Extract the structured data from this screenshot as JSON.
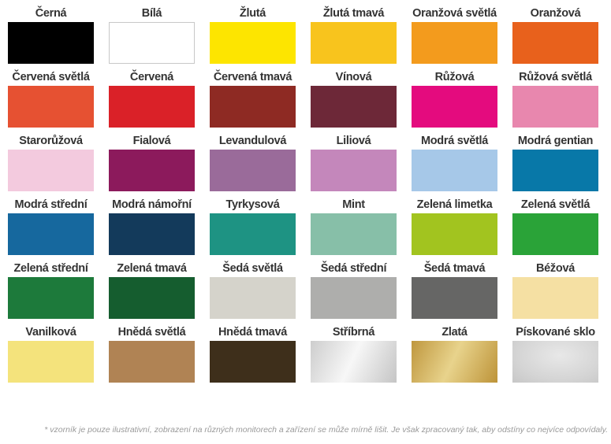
{
  "footnote": "* vzorník je pouze ilustrativní, zobrazení na různých monitorech a zařízení se může mírně lišit. Je však zpracovaný tak, aby odstíny co nejvíce odpovídaly.",
  "palette": {
    "columns": 6,
    "swatches": [
      {
        "label": "Černá",
        "color": "#000000"
      },
      {
        "label": "Bílá",
        "color": "#ffffff",
        "border": "#c8c8c8"
      },
      {
        "label": "Žlutá",
        "color": "#fde500"
      },
      {
        "label": "Žlutá tmavá",
        "color": "#f8c41d"
      },
      {
        "label": "Oranžová světlá",
        "color": "#f39b1d"
      },
      {
        "label": "Oranžová",
        "color": "#e8611c"
      },
      {
        "label": "Červená světlá",
        "color": "#e65132"
      },
      {
        "label": "Červená",
        "color": "#da2128"
      },
      {
        "label": "Červená tmavá",
        "color": "#8e2a23"
      },
      {
        "label": "Vínová",
        "color": "#6d2838"
      },
      {
        "label": "Růžová",
        "color": "#e40b7e"
      },
      {
        "label": "Růžová světlá",
        "color": "#e887ae"
      },
      {
        "label": "Starorůžová",
        "color": "#f3cade"
      },
      {
        "label": "Fialová",
        "color": "#8c1a5c"
      },
      {
        "label": "Levandulová",
        "color": "#9a6b9a"
      },
      {
        "label": "Liliová",
        "color": "#c487bb"
      },
      {
        "label": "Modrá světlá",
        "color": "#a6c8e8"
      },
      {
        "label": "Modrá gentian",
        "color": "#0878a8"
      },
      {
        "label": "Modrá střední",
        "color": "#16689e"
      },
      {
        "label": "Modrá námořní",
        "color": "#133a5b"
      },
      {
        "label": "Tyrkysová",
        "color": "#1e9383"
      },
      {
        "label": "Mint",
        "color": "#87bfa8"
      },
      {
        "label": "Zelená limetka",
        "color": "#a2c41f"
      },
      {
        "label": "Zelená světlá",
        "color": "#2aa338"
      },
      {
        "label": "Zelená střední",
        "color": "#1d7a3b"
      },
      {
        "label": "Zelená tmavá",
        "color": "#155d2f"
      },
      {
        "label": "Šedá světlá",
        "color": "#d5d3cb"
      },
      {
        "label": "Šedá střední",
        "color": "#aeaeac"
      },
      {
        "label": "Šedá tmavá",
        "color": "#666665"
      },
      {
        "label": "Béžová",
        "color": "#f5e0a3"
      },
      {
        "label": "Vanilková",
        "color": "#f4e37c"
      },
      {
        "label": "Hnědá světlá",
        "color": "#b08354"
      },
      {
        "label": "Hnědá tmavá",
        "color": "#3e2f1b"
      },
      {
        "label": "Stříbrná",
        "color": "#d9d9d9",
        "gradient": "linear-gradient(115deg,#cdcdcd 0%,#f7f7f7 48%,#c5c5c5 100%)"
      },
      {
        "label": "Zlatá",
        "color": "#d2a74f",
        "gradient": "linear-gradient(115deg,#bf973e 0%,#e8d38c 48%,#bd9338 100%)"
      },
      {
        "label": "Pískované sklo",
        "color": "#d5d5d5",
        "gradient": "radial-gradient(ellipse at 55% 35%,#e8e8e8 0%,#d4d4d4 65%,#c7c7c7 100%)"
      }
    ]
  },
  "chart_data": {
    "type": "table",
    "columns": [
      "name",
      "color_hex"
    ],
    "rows": [
      [
        "Černá",
        "#000000"
      ],
      [
        "Bílá",
        "#ffffff"
      ],
      [
        "Žlutá",
        "#fde500"
      ],
      [
        "Žlutá tmavá",
        "#f8c41d"
      ],
      [
        "Oranžová světlá",
        "#f39b1d"
      ],
      [
        "Oranžová",
        "#e8611c"
      ],
      [
        "Červená světlá",
        "#e65132"
      ],
      [
        "Červená",
        "#da2128"
      ],
      [
        "Červená tmavá",
        "#8e2a23"
      ],
      [
        "Vínová",
        "#6d2838"
      ],
      [
        "Růžová",
        "#e40b7e"
      ],
      [
        "Růžová světlá",
        "#e887ae"
      ],
      [
        "Starorůžová",
        "#f3cade"
      ],
      [
        "Fialová",
        "#8c1a5c"
      ],
      [
        "Levandulová",
        "#9a6b9a"
      ],
      [
        "Liliová",
        "#c487bb"
      ],
      [
        "Modrá světlá",
        "#a6c8e8"
      ],
      [
        "Modrá gentian",
        "#0878a8"
      ],
      [
        "Modrá střední",
        "#16689e"
      ],
      [
        "Modrá námořní",
        "#133a5b"
      ],
      [
        "Tyrkysová",
        "#1e9383"
      ],
      [
        "Mint",
        "#87bfa8"
      ],
      [
        "Zelená limetka",
        "#a2c41f"
      ],
      [
        "Zelená světlá",
        "#2aa338"
      ],
      [
        "Zelená střední",
        "#1d7a3b"
      ],
      [
        "Zelená tmavá",
        "#155d2f"
      ],
      [
        "Šedá světlá",
        "#d5d3cb"
      ],
      [
        "Šedá střední",
        "#aeaeac"
      ],
      [
        "Šedá tmavá",
        "#666665"
      ],
      [
        "Béžová",
        "#f5e0a3"
      ],
      [
        "Vanilková",
        "#f4e37c"
      ],
      [
        "Hnědá světlá",
        "#b08354"
      ],
      [
        "Hnědá tmavá",
        "#3e2f1b"
      ],
      [
        "Stříbrná",
        "#d9d9d9"
      ],
      [
        "Zlatá",
        "#d2a74f"
      ],
      [
        "Pískované sklo",
        "#d5d5d5"
      ]
    ],
    "layout": {
      "grid_columns": 6,
      "grid_rows": 6,
      "label_position": "above-swatch"
    }
  }
}
